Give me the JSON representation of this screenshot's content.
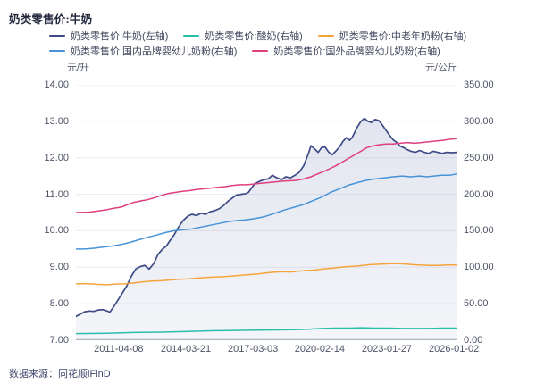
{
  "header": {
    "title": "奶类零售价:牛奶"
  },
  "source": {
    "label": "数据来源：同花顺iFinD"
  },
  "chart_data": {
    "type": "line",
    "title": "奶类零售价:牛奶",
    "grid": true,
    "legend_position": "top-left",
    "left_axis": {
      "unit": "元/升",
      "min": 7,
      "max": 14,
      "ticks": [
        "14.00",
        "13.00",
        "12.00",
        "11.00",
        "10.00",
        "9.00",
        "8.00",
        "7.00"
      ]
    },
    "right_axis": {
      "unit": "元/公斤",
      "min": 0,
      "max": 350,
      "ticks": [
        "350.00",
        "300.00",
        "250.00",
        "200.00",
        "150.00",
        "100.00",
        "50.00",
        "0.00"
      ]
    },
    "x_axis": {
      "ticks": [
        {
          "label": "2011-04-08",
          "f": 0.112
        },
        {
          "label": "2014-03-21",
          "f": 0.288
        },
        {
          "label": "2017-03-03",
          "f": 0.464
        },
        {
          "label": "2020-02-14",
          "f": 0.639
        },
        {
          "label": "2023-01-27",
          "f": 0.815
        },
        {
          "label": "2026-01-02",
          "f": 0.991
        }
      ]
    },
    "legend_rows": [
      [
        0,
        1,
        2
      ],
      [
        3,
        4
      ]
    ],
    "series": [
      {
        "name": "奶类零售价:牛奶(左轴)",
        "axis": "left",
        "color": "#3E4B87",
        "width": 1.7,
        "area": true,
        "points": [
          [
            0.0,
            7.65
          ],
          [
            0.012,
            7.72
          ],
          [
            0.023,
            7.78
          ],
          [
            0.035,
            7.8
          ],
          [
            0.047,
            7.79
          ],
          [
            0.059,
            7.83
          ],
          [
            0.07,
            7.84
          ],
          [
            0.082,
            7.8
          ],
          [
            0.089,
            7.77
          ],
          [
            0.098,
            7.9
          ],
          [
            0.11,
            8.1
          ],
          [
            0.122,
            8.3
          ],
          [
            0.133,
            8.48
          ],
          [
            0.145,
            8.75
          ],
          [
            0.157,
            8.95
          ],
          [
            0.169,
            9.02
          ],
          [
            0.18,
            9.05
          ],
          [
            0.192,
            8.95
          ],
          [
            0.204,
            9.1
          ],
          [
            0.215,
            9.35
          ],
          [
            0.227,
            9.5
          ],
          [
            0.237,
            9.58
          ],
          [
            0.246,
            9.72
          ],
          [
            0.258,
            9.9
          ],
          [
            0.269,
            10.1
          ],
          [
            0.281,
            10.28
          ],
          [
            0.293,
            10.4
          ],
          [
            0.304,
            10.45
          ],
          [
            0.316,
            10.42
          ],
          [
            0.328,
            10.48
          ],
          [
            0.34,
            10.45
          ],
          [
            0.351,
            10.52
          ],
          [
            0.363,
            10.55
          ],
          [
            0.375,
            10.6
          ],
          [
            0.386,
            10.68
          ],
          [
            0.398,
            10.8
          ],
          [
            0.41,
            10.9
          ],
          [
            0.421,
            10.98
          ],
          [
            0.433,
            11.0
          ],
          [
            0.445,
            11.02
          ],
          [
            0.452,
            11.05
          ],
          [
            0.461,
            11.18
          ],
          [
            0.468,
            11.28
          ],
          [
            0.48,
            11.35
          ],
          [
            0.492,
            11.4
          ],
          [
            0.504,
            11.42
          ],
          [
            0.515,
            11.52
          ],
          [
            0.527,
            11.45
          ],
          [
            0.539,
            11.4
          ],
          [
            0.55,
            11.48
          ],
          [
            0.562,
            11.45
          ],
          [
            0.574,
            11.52
          ],
          [
            0.585,
            11.6
          ],
          [
            0.597,
            11.78
          ],
          [
            0.609,
            12.1
          ],
          [
            0.616,
            12.33
          ],
          [
            0.625,
            12.25
          ],
          [
            0.635,
            12.15
          ],
          [
            0.644,
            12.28
          ],
          [
            0.653,
            12.3
          ],
          [
            0.663,
            12.15
          ],
          [
            0.672,
            12.08
          ],
          [
            0.681,
            12.18
          ],
          [
            0.691,
            12.3
          ],
          [
            0.7,
            12.45
          ],
          [
            0.709,
            12.55
          ],
          [
            0.717,
            12.48
          ],
          [
            0.724,
            12.55
          ],
          [
            0.731,
            12.7
          ],
          [
            0.738,
            12.85
          ],
          [
            0.747,
            13.0
          ],
          [
            0.756,
            13.08
          ],
          [
            0.766,
            13.0
          ],
          [
            0.775,
            12.97
          ],
          [
            0.784,
            13.05
          ],
          [
            0.794,
            13.02
          ],
          [
            0.803,
            12.9
          ],
          [
            0.813,
            12.75
          ],
          [
            0.822,
            12.62
          ],
          [
            0.831,
            12.5
          ],
          [
            0.841,
            12.42
          ],
          [
            0.85,
            12.32
          ],
          [
            0.859,
            12.28
          ],
          [
            0.869,
            12.22
          ],
          [
            0.878,
            12.18
          ],
          [
            0.89,
            12.15
          ],
          [
            0.901,
            12.2
          ],
          [
            0.913,
            12.15
          ],
          [
            0.925,
            12.12
          ],
          [
            0.937,
            12.18
          ],
          [
            0.948,
            12.15
          ],
          [
            0.96,
            12.12
          ],
          [
            0.972,
            12.15
          ],
          [
            0.986,
            12.14
          ],
          [
            1.0,
            12.15
          ]
        ]
      },
      {
        "name": "奶类零售价:酸奶(右轴)",
        "axis": "right",
        "color": "#29BEA9",
        "width": 1.5,
        "area": false,
        "points": [
          [
            0.0,
            9
          ],
          [
            0.082,
            9.5
          ],
          [
            0.152,
            10.5
          ],
          [
            0.222,
            11
          ],
          [
            0.293,
            12
          ],
          [
            0.363,
            13
          ],
          [
            0.433,
            13.5
          ],
          [
            0.504,
            14
          ],
          [
            0.574,
            14.5
          ],
          [
            0.609,
            15
          ],
          [
            0.644,
            16
          ],
          [
            0.679,
            16.5
          ],
          [
            0.714,
            16.5
          ],
          [
            0.749,
            17
          ],
          [
            0.784,
            16.5
          ],
          [
            0.82,
            16.5
          ],
          [
            0.855,
            16
          ],
          [
            0.89,
            16
          ],
          [
            0.925,
            16
          ],
          [
            0.96,
            16.5
          ],
          [
            1.0,
            16.5
          ]
        ]
      },
      {
        "name": "奶类零售价:中老年奶粉(右轴)",
        "axis": "right",
        "color": "#F5A43C",
        "width": 1.5,
        "area": false,
        "points": [
          [
            0.0,
            77.5
          ],
          [
            0.035,
            77.5
          ],
          [
            0.059,
            76.5
          ],
          [
            0.082,
            76
          ],
          [
            0.105,
            77
          ],
          [
            0.129,
            77.5
          ],
          [
            0.152,
            78.5
          ],
          [
            0.176,
            80
          ],
          [
            0.199,
            81
          ],
          [
            0.222,
            81.5
          ],
          [
            0.246,
            82.5
          ],
          [
            0.269,
            83.5
          ],
          [
            0.293,
            84
          ],
          [
            0.316,
            85
          ],
          [
            0.34,
            86
          ],
          [
            0.363,
            86.5
          ],
          [
            0.386,
            87
          ],
          [
            0.41,
            88
          ],
          [
            0.433,
            89
          ],
          [
            0.457,
            90
          ],
          [
            0.48,
            91
          ],
          [
            0.504,
            92.5
          ],
          [
            0.527,
            93.5
          ],
          [
            0.546,
            94
          ],
          [
            0.564,
            93.5
          ],
          [
            0.583,
            94.5
          ],
          [
            0.602,
            95.5
          ],
          [
            0.62,
            96
          ],
          [
            0.639,
            97
          ],
          [
            0.658,
            98
          ],
          [
            0.677,
            99
          ],
          [
            0.695,
            100
          ],
          [
            0.714,
            101
          ],
          [
            0.733,
            101.5
          ],
          [
            0.752,
            102.5
          ],
          [
            0.77,
            103.5
          ],
          [
            0.789,
            104
          ],
          [
            0.808,
            104.5
          ],
          [
            0.827,
            105
          ],
          [
            0.845,
            105
          ],
          [
            0.864,
            104.5
          ],
          [
            0.883,
            103.5
          ],
          [
            0.901,
            103
          ],
          [
            0.925,
            102.5
          ],
          [
            0.948,
            102.5
          ],
          [
            0.972,
            103
          ],
          [
            1.0,
            103
          ]
        ]
      },
      {
        "name": "奶类零售价:国内品牌婴幼儿奶粉(右轴)",
        "axis": "right",
        "color": "#4793D9",
        "width": 1.5,
        "area": false,
        "points": [
          [
            0.0,
            125
          ],
          [
            0.023,
            125
          ],
          [
            0.047,
            126
          ],
          [
            0.07,
            127.5
          ],
          [
            0.094,
            129
          ],
          [
            0.117,
            131
          ],
          [
            0.141,
            134
          ],
          [
            0.164,
            137.5
          ],
          [
            0.187,
            141
          ],
          [
            0.211,
            144
          ],
          [
            0.234,
            147.5
          ],
          [
            0.258,
            150
          ],
          [
            0.281,
            151.5
          ],
          [
            0.304,
            152.5
          ],
          [
            0.328,
            155
          ],
          [
            0.351,
            157.5
          ],
          [
            0.375,
            160
          ],
          [
            0.398,
            162.5
          ],
          [
            0.421,
            164
          ],
          [
            0.445,
            165
          ],
          [
            0.468,
            166.5
          ],
          [
            0.492,
            169
          ],
          [
            0.504,
            171
          ],
          [
            0.527,
            175
          ],
          [
            0.55,
            179
          ],
          [
            0.574,
            182.5
          ],
          [
            0.597,
            186
          ],
          [
            0.62,
            191
          ],
          [
            0.644,
            196
          ],
          [
            0.667,
            202.5
          ],
          [
            0.691,
            207.5
          ],
          [
            0.714,
            212.5
          ],
          [
            0.738,
            216
          ],
          [
            0.761,
            219
          ],
          [
            0.784,
            221
          ],
          [
            0.808,
            222.5
          ],
          [
            0.831,
            224
          ],
          [
            0.855,
            225
          ],
          [
            0.878,
            224
          ],
          [
            0.901,
            225
          ],
          [
            0.92,
            224
          ],
          [
            0.939,
            225
          ],
          [
            0.958,
            226
          ],
          [
            0.979,
            226
          ],
          [
            1.0,
            228
          ]
        ]
      },
      {
        "name": "奶类零售价:国外品牌婴幼儿奶粉(右轴)",
        "axis": "right",
        "color": "#E03E7E",
        "width": 1.5,
        "area": false,
        "points": [
          [
            0.0,
            175
          ],
          [
            0.035,
            175.5
          ],
          [
            0.063,
            177.5
          ],
          [
            0.082,
            179
          ],
          [
            0.101,
            181
          ],
          [
            0.119,
            182.5
          ],
          [
            0.136,
            186
          ],
          [
            0.152,
            189
          ],
          [
            0.171,
            191
          ],
          [
            0.187,
            192.5
          ],
          [
            0.204,
            195
          ],
          [
            0.222,
            198
          ],
          [
            0.241,
            201
          ],
          [
            0.26,
            202.5
          ],
          [
            0.279,
            204
          ],
          [
            0.297,
            205
          ],
          [
            0.316,
            206.5
          ],
          [
            0.335,
            207.5
          ],
          [
            0.354,
            208.5
          ],
          [
            0.372,
            209.5
          ],
          [
            0.391,
            210.5
          ],
          [
            0.41,
            212
          ],
          [
            0.429,
            213
          ],
          [
            0.447,
            213
          ],
          [
            0.466,
            214
          ],
          [
            0.485,
            215
          ],
          [
            0.504,
            216
          ],
          [
            0.522,
            217
          ],
          [
            0.541,
            218
          ],
          [
            0.56,
            218.5
          ],
          [
            0.578,
            219
          ],
          [
            0.597,
            221
          ],
          [
            0.616,
            224
          ],
          [
            0.632,
            227.5
          ],
          [
            0.649,
            231
          ],
          [
            0.665,
            235
          ],
          [
            0.681,
            239
          ],
          [
            0.698,
            244
          ],
          [
            0.714,
            249
          ],
          [
            0.731,
            254
          ],
          [
            0.747,
            259
          ],
          [
            0.763,
            264
          ],
          [
            0.78,
            266.5
          ],
          [
            0.796,
            268
          ],
          [
            0.813,
            269
          ],
          [
            0.831,
            269
          ],
          [
            0.85,
            270
          ],
          [
            0.869,
            271
          ],
          [
            0.887,
            270
          ],
          [
            0.906,
            271
          ],
          [
            0.925,
            272
          ],
          [
            0.944,
            273
          ],
          [
            0.962,
            274
          ],
          [
            0.981,
            275.5
          ],
          [
            1.0,
            276.5
          ]
        ]
      }
    ],
    "style": {
      "grid_color": "#e9ebf1",
      "axis_line_color": "#b3b8c3",
      "area_fill_color": "#7b88b8",
      "area_opacity_top": 0.22,
      "area_opacity_bottom": 0.08
    }
  }
}
